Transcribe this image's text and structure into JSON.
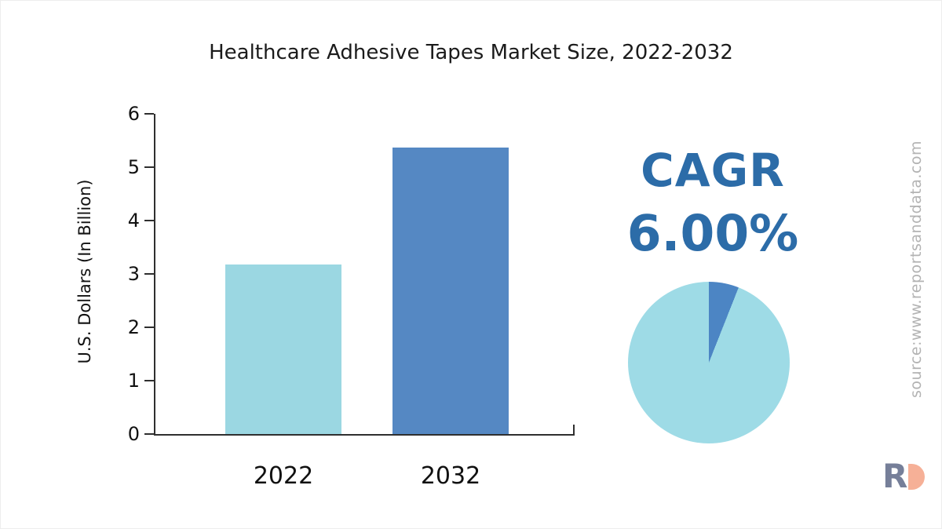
{
  "chart_data": [
    {
      "type": "bar",
      "title": "Healthcare Adhesive Tapes Market Size, 2022-2032",
      "categories": [
        "2022",
        "2032"
      ],
      "values": [
        3.18,
        5.37
      ],
      "bar_colors": [
        "#9bd7e2",
        "#5588c3"
      ],
      "xlabel": "",
      "ylabel": "U.S. Dollars (In Billion)",
      "ylim": [
        0,
        6
      ],
      "yticks": [
        0,
        1,
        2,
        3,
        4,
        5,
        6
      ],
      "grid": false,
      "legend": null
    },
    {
      "type": "pie",
      "labels": [
        "cagr-slice",
        "remainder"
      ],
      "values": [
        6,
        94
      ],
      "colors": [
        "#4c85c4",
        "#9edbe6"
      ],
      "start_angle_deg": 0,
      "direction": "clockwise"
    }
  ],
  "annotations": {
    "cagr_label": "CAGR",
    "cagr_value": "6.00%",
    "cagr_color": "#2c6ca8"
  },
  "source": {
    "text": "source:www.reportsanddata.com",
    "color": "#b3b3b3"
  },
  "logo": {
    "letter": "R",
    "letter_color": "#767f99",
    "d_color": "#f6b097"
  }
}
